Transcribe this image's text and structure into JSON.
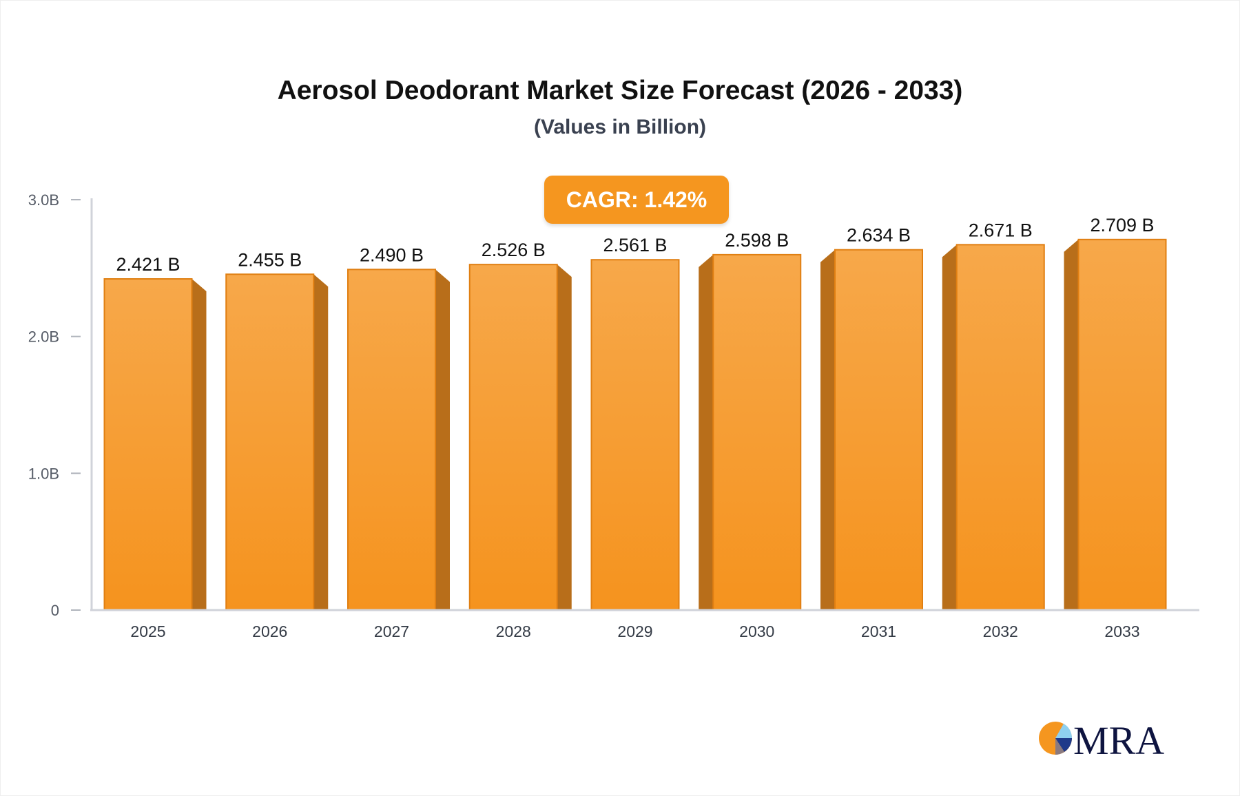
{
  "chart_data": {
    "type": "bar",
    "title": "Aerosol Deodorant Market Size Forecast (2026 - 2033)",
    "subtitle": "(Values in Billion)",
    "annotation": "CAGR: 1.42%",
    "categories": [
      "2025",
      "2026",
      "2027",
      "2028",
      "2029",
      "2030",
      "2031",
      "2032",
      "2033"
    ],
    "values": [
      2.421,
      2.455,
      2.49,
      2.526,
      2.561,
      2.598,
      2.634,
      2.671,
      2.709
    ],
    "data_labels": [
      "2.421 B",
      "2.455 B",
      "2.490 B",
      "2.526 B",
      "2.561 B",
      "2.598 B",
      "2.634 B",
      "2.671 B",
      "2.709 B"
    ],
    "ylim": [
      0,
      3.0
    ],
    "yticks": [
      0,
      1.0,
      2.0,
      3.0
    ],
    "ytick_labels": [
      "0",
      "1.0B",
      "2.0B",
      "3.0B"
    ],
    "xlabel": "",
    "ylabel": "",
    "grid": false,
    "colors": {
      "bar_top": "#f7a84a",
      "bar_bottom": "#f5931e",
      "bar_side": "#b86e1a",
      "bar_edge": "#e07f12",
      "axis": "#d0d3da"
    }
  },
  "logo": {
    "text": "MRA"
  }
}
